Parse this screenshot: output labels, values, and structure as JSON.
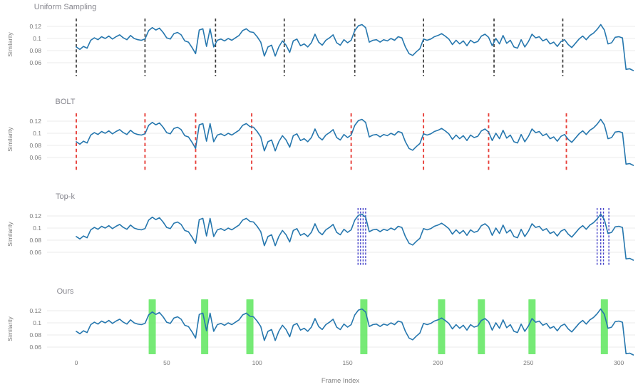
{
  "chart_data": {
    "type": "line",
    "xlabel": "Frame Index",
    "ylabel": "Similarity",
    "xticks": [
      0,
      50,
      100,
      150,
      200,
      250,
      300
    ],
    "yticks": [
      0.06,
      0.08,
      0.1,
      0.12
    ],
    "x_range": [
      0,
      308
    ],
    "ylim": [
      0.04,
      0.135
    ],
    "grid": true,
    "line_color": "#2677ae",
    "grid_color": "#ebebeb",
    "tick_label_color": "#7a7a7a",
    "title_color": "#85858d",
    "series_name": "similarity",
    "series_x_start": 0,
    "series_x_step": 2,
    "similarity_values": [
      0.086,
      0.082,
      0.087,
      0.084,
      0.097,
      0.101,
      0.098,
      0.103,
      0.1,
      0.104,
      0.099,
      0.103,
      0.106,
      0.101,
      0.098,
      0.105,
      0.1,
      0.098,
      0.097,
      0.099,
      0.113,
      0.118,
      0.114,
      0.117,
      0.11,
      0.101,
      0.099,
      0.108,
      0.11,
      0.106,
      0.096,
      0.094,
      0.085,
      0.075,
      0.114,
      0.116,
      0.087,
      0.116,
      0.086,
      0.097,
      0.099,
      0.096,
      0.1,
      0.097,
      0.101,
      0.105,
      0.113,
      0.116,
      0.111,
      0.11,
      0.103,
      0.094,
      0.071,
      0.086,
      0.089,
      0.071,
      0.086,
      0.096,
      0.089,
      0.077,
      0.096,
      0.099,
      0.088,
      0.091,
      0.086,
      0.093,
      0.107,
      0.094,
      0.089,
      0.097,
      0.101,
      0.106,
      0.093,
      0.089,
      0.098,
      0.093,
      0.097,
      0.113,
      0.121,
      0.123,
      0.118,
      0.094,
      0.097,
      0.098,
      0.094,
      0.098,
      0.096,
      0.1,
      0.097,
      0.103,
      0.101,
      0.086,
      0.075,
      0.072,
      0.078,
      0.083,
      0.099,
      0.097,
      0.099,
      0.103,
      0.105,
      0.108,
      0.104,
      0.099,
      0.09,
      0.097,
      0.091,
      0.096,
      0.088,
      0.097,
      0.093,
      0.095,
      0.104,
      0.107,
      0.102,
      0.088,
      0.1,
      0.091,
      0.105,
      0.092,
      0.097,
      0.086,
      0.084,
      0.098,
      0.086,
      0.095,
      0.107,
      0.101,
      0.103,
      0.096,
      0.099,
      0.091,
      0.094,
      0.087,
      0.095,
      0.098,
      0.09,
      0.085,
      0.092,
      0.099,
      0.104,
      0.098,
      0.105,
      0.109,
      0.115,
      0.123,
      0.114,
      0.091,
      0.093,
      0.102,
      0.103,
      0.101,
      0.049,
      0.05,
      0.047
    ],
    "subplots": [
      {
        "title": "Uniform Sampling",
        "marker_type": "vline-dashed",
        "marker_color": "#3d3d3d",
        "marker_width": 1.7,
        "marker_dash": "4 3.2",
        "marker_frames": [
          0,
          38,
          77,
          115,
          154,
          192,
          231,
          269
        ]
      },
      {
        "title": "BOLT",
        "marker_type": "vline-dashed",
        "marker_color": "#e8403a",
        "marker_width": 1.9,
        "marker_dash": "4.5 3.8",
        "marker_frames": [
          0,
          38,
          66,
          97,
          152,
          192,
          228,
          271
        ]
      },
      {
        "title": "Top-k",
        "marker_type": "vline-dashed",
        "marker_color": "#4543c9",
        "marker_width": 1.4,
        "marker_dash": "2.8 2",
        "marker_frames": [
          155.8,
          157.2,
          158.6,
          160,
          288,
          290,
          291.5,
          294.5
        ]
      },
      {
        "title": "Ours",
        "marker_type": "band",
        "marker_color": "#63e763",
        "marker_band_width": 10,
        "marker_frames": [
          42,
          71,
          96,
          159,
          202,
          224,
          252,
          292
        ]
      }
    ]
  }
}
